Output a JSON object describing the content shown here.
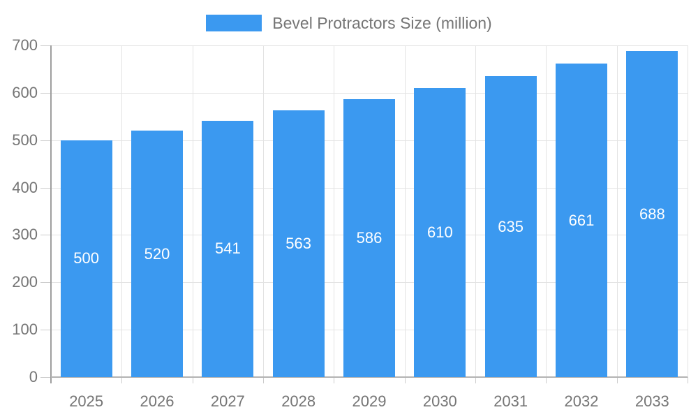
{
  "legend": {
    "label": "Bevel Protractors Size (million)"
  },
  "colors": {
    "bar": "#3b99f0",
    "axis_text": "#757575",
    "grid_line": "#e3e3e3",
    "tick_line": "#cccccc",
    "y_axis_line": "#9e9e9e",
    "x_axis_line": "#b3b3b3",
    "bar_label_text": "#ffffff",
    "background": "#ffffff"
  },
  "chart_data": {
    "type": "bar",
    "title": "Bevel Protractors Size (million)",
    "categories": [
      "2025",
      "2026",
      "2027",
      "2028",
      "2029",
      "2030",
      "2031",
      "2032",
      "2033"
    ],
    "series": [
      {
        "name": "Bevel Protractors Size (million)",
        "values": [
          500,
          520,
          541,
          563,
          586,
          610,
          635,
          661,
          688
        ]
      }
    ],
    "bar_labels": [
      "500",
      "520",
      "541",
      "563",
      "586",
      "610",
      "635",
      "661",
      "688"
    ],
    "xlabel": "",
    "ylabel": "",
    "ylim": [
      0,
      700
    ],
    "yticks": [
      0,
      100,
      200,
      300,
      400,
      500,
      600,
      700
    ],
    "grid": "both",
    "legend_position": "top",
    "bar_label_position": "center-inside"
  }
}
